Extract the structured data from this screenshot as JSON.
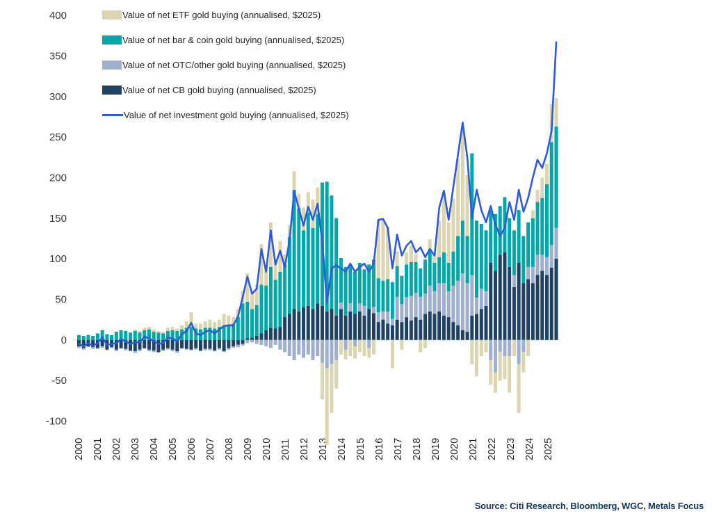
{
  "page": {
    "background": "#ffffff"
  },
  "source_note": "Source: Citi Research, Bloomberg, WGC, Metals Focus",
  "legend": [
    {
      "label": "Value of net ETF gold buying (annualised, $2025)",
      "color": "#dcd5b2",
      "type": "box"
    },
    {
      "label": "Value of net bar & coin gold buying (annualised, $2025)",
      "color": "#00a8a8",
      "type": "box"
    },
    {
      "label": "Value of net OTC/other gold buying (annualised, $2025)",
      "color": "#9fafce",
      "type": "box"
    },
    {
      "label": "Value of net CB gold buying (annualised, $2025)",
      "color": "#1e4164",
      "type": "box"
    },
    {
      "label": "Value of net investment gold buying (annualised, $2025)",
      "color": "#2e5bdb",
      "type": "line"
    }
  ],
  "chart_data": {
    "type": "bar",
    "subtype": "stacked quarterly bars with overlaid line",
    "unit": "annualised, $2025 billions",
    "x_years": [
      "2000",
      "2001",
      "2002",
      "2003",
      "2004",
      "2005",
      "2006",
      "2007",
      "2008",
      "2009",
      "2010",
      "2011",
      "2012",
      "2013",
      "2014",
      "2015",
      "2016",
      "2017",
      "2018",
      "2019",
      "2020",
      "2021",
      "2022",
      "2023",
      "2024",
      "2025"
    ],
    "quarters_per_year": 4,
    "y_ticks": [
      400,
      350,
      300,
      250,
      200,
      150,
      100,
      50,
      0,
      -50,
      -100
    ],
    "ylim": [
      -100,
      400
    ],
    "grid": "zero gridline only",
    "legend_position": "top-left inside plot",
    "series": [
      {
        "name": "Value of net CB gold buying (annualised, $2025)",
        "color": "#1e4164",
        "values": [
          -8,
          -10,
          -8,
          -9,
          -10,
          -8,
          -12,
          -9,
          -12,
          -10,
          -11,
          -13,
          -14,
          -12,
          -10,
          -12,
          -13,
          -15,
          -12,
          -10,
          -12,
          -14,
          -10,
          -11,
          -12,
          -10,
          -13,
          -11,
          -11,
          -13,
          -10,
          -14,
          -10,
          -8,
          -6,
          -5,
          2,
          3,
          5,
          8,
          12,
          15,
          14,
          16,
          28,
          32,
          38,
          35,
          40,
          42,
          38,
          45,
          42,
          35,
          38,
          30,
          38,
          30,
          35,
          32,
          35,
          30,
          38,
          33,
          22,
          25,
          20,
          18,
          25,
          22,
          28,
          24,
          28,
          25,
          32,
          35,
          32,
          35,
          30,
          28,
          22,
          18,
          12,
          10,
          30,
          32,
          38,
          42,
          95,
          85,
          105,
          108,
          90,
          65,
          95,
          70,
          75,
          70,
          80,
          85,
          80,
          89,
          100
        ]
      },
      {
        "name": "Value of net OTC/other gold buying (annualised, $2025)",
        "color": "#9fafce",
        "values": [
          -2,
          -2,
          -1,
          -2,
          -1,
          -2,
          -1,
          -1,
          -2,
          -1,
          -2,
          -1,
          -2,
          -2,
          -1,
          -2,
          -2,
          -1,
          -2,
          -2,
          -2,
          -2,
          -1,
          -1,
          -1,
          -2,
          -1,
          -2,
          -2,
          -1,
          -2,
          -1,
          -2,
          -2,
          -3,
          -2,
          -4,
          -3,
          -5,
          -6,
          -8,
          -10,
          -6,
          -12,
          -15,
          -20,
          -25,
          -18,
          -22,
          -18,
          -25,
          -20,
          -28,
          -35,
          -30,
          -25,
          8,
          -12,
          10,
          -8,
          10,
          12,
          -10,
          8,
          12,
          10,
          15,
          8,
          28,
          22,
          25,
          30,
          30,
          28,
          25,
          32,
          28,
          35,
          40,
          32,
          45,
          55,
          70,
          60,
          50,
          20,
          25,
          18,
          -25,
          -40,
          -15,
          -20,
          -20,
          15,
          -30,
          -15,
          15,
          20,
          25,
          20,
          22,
          28,
          38
        ]
      },
      {
        "name": "Value of net bar & coin gold buying (annualised, $2025)",
        "color": "#00a8a8",
        "values": [
          6,
          5,
          6,
          5,
          8,
          12,
          7,
          6,
          10,
          12,
          11,
          9,
          11,
          9,
          12,
          13,
          10,
          9,
          8,
          11,
          12,
          11,
          13,
          15,
          16,
          14,
          13,
          15,
          15,
          14,
          16,
          18,
          18,
          20,
          28,
          45,
          45,
          35,
          38,
          60,
          55,
          75,
          60,
          68,
          65,
          95,
          147,
          127,
          95,
          115,
          100,
          110,
          152,
          160,
          140,
          120,
          55,
          60,
          48,
          52,
          50,
          45,
          55,
          58,
          42,
          38,
          40,
          45,
          38,
          35,
          40,
          42,
          38,
          35,
          42,
          45,
          35,
          32,
          38,
          35,
          42,
          55,
          65,
          58,
          150,
          95,
          80,
          75,
          65,
          70,
          60,
          68,
          60,
          55,
          65,
          58,
          55,
          60,
          65,
          70,
          90,
          127,
          125
        ]
      },
      {
        "name": "Value of net ETF gold buying (annualised, $2025)",
        "color": "#dcd5b2",
        "values": [
          0,
          0,
          0,
          0,
          0,
          0,
          0,
          0,
          0,
          0,
          0,
          0,
          2,
          2,
          3,
          3,
          3,
          2,
          2,
          4,
          4,
          3,
          5,
          8,
          18,
          6,
          7,
          8,
          10,
          8,
          9,
          14,
          12,
          8,
          10,
          15,
          35,
          22,
          25,
          50,
          25,
          55,
          25,
          38,
          12,
          15,
          23,
          18,
          28,
          25,
          35,
          33,
          -45,
          -95,
          -60,
          -35,
          -18,
          -12,
          -20,
          -15,
          -15,
          -20,
          -12,
          -18,
          72,
          75,
          65,
          -35,
          18,
          -12,
          15,
          20,
          10,
          -15,
          -10,
          12,
          12,
          45,
          75,
          50,
          65,
          95,
          110,
          75,
          -30,
          -45,
          -20,
          -15,
          -30,
          -25,
          -35,
          -28,
          -45,
          -20,
          -60,
          -25,
          -20,
          10,
          15,
          25,
          25,
          47,
          35
        ]
      }
    ],
    "line_series": {
      "name": "Value of net investment gold buying (annualised, $2025)",
      "color": "#2e5bdb",
      "values": [
        -5,
        -8,
        -4,
        -7,
        -4,
        3,
        -6,
        -5,
        -4,
        1,
        -2,
        -5,
        -3,
        -3,
        4,
        2,
        -2,
        -5,
        -4,
        3,
        2,
        -2,
        7,
        11,
        21,
        8,
        6,
        10,
        12,
        8,
        13,
        17,
        18,
        18,
        29,
        53,
        78,
        57,
        63,
        112,
        84,
        135,
        93,
        110,
        90,
        122,
        183,
        162,
        141,
        164,
        148,
        168,
        121,
        46,
        88,
        92,
        88,
        84,
        94,
        84,
        90,
        94,
        84,
        94,
        148,
        149,
        138,
        88,
        130,
        104,
        116,
        122,
        108,
        114,
        102,
        112,
        104,
        163,
        184,
        148,
        188,
        228,
        268,
        225,
        150,
        185,
        160,
        145,
        165,
        142,
        128,
        138,
        170,
        148,
        185,
        158,
        175,
        200,
        222,
        212,
        230,
        257,
        367
      ]
    }
  }
}
